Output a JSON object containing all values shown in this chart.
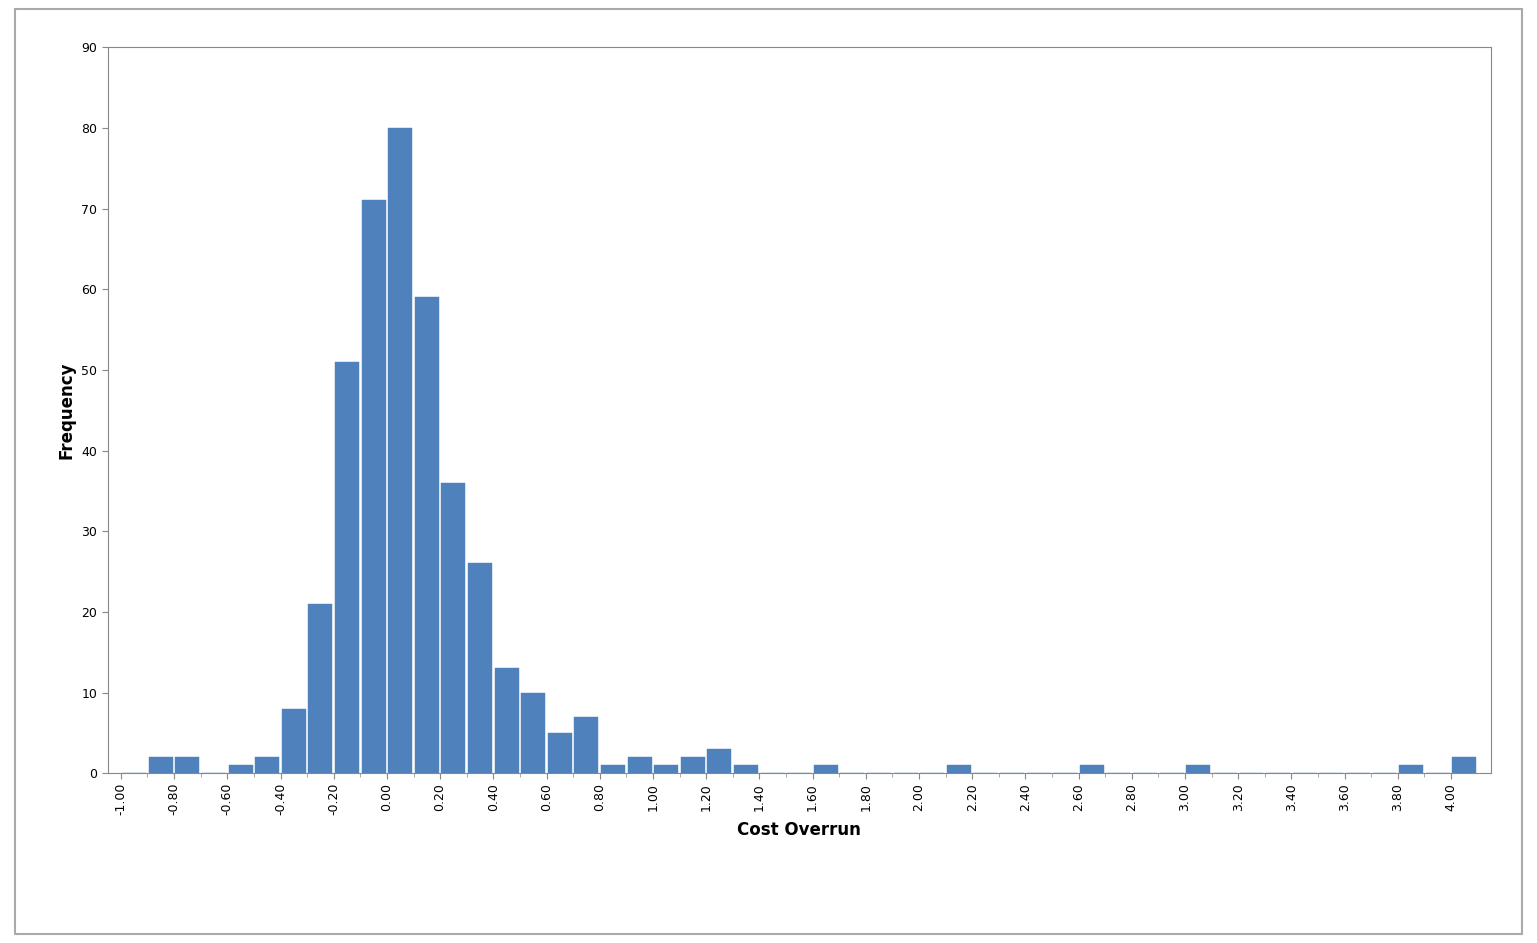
{
  "bar_lefts": [
    -1.0,
    -0.9,
    -0.8,
    -0.7,
    -0.6,
    -0.5,
    -0.4,
    -0.3,
    -0.2,
    -0.1,
    0.0,
    0.1,
    0.2,
    0.3,
    0.4,
    0.5,
    0.6,
    0.7,
    0.8,
    0.9,
    1.0,
    1.1,
    1.2,
    1.3,
    1.4,
    1.5,
    1.6,
    1.7,
    1.8,
    1.9,
    2.0,
    2.1,
    2.2,
    2.3,
    2.4,
    2.5,
    2.6,
    2.7,
    2.8,
    2.9,
    3.0,
    3.1,
    3.2,
    3.3,
    3.4,
    3.5,
    3.6,
    3.7,
    3.8,
    3.9,
    4.0
  ],
  "frequencies": [
    0,
    2,
    2,
    0,
    1,
    2,
    8,
    21,
    51,
    71,
    80,
    59,
    36,
    26,
    13,
    10,
    5,
    7,
    1,
    2,
    1,
    2,
    3,
    1,
    0,
    0,
    1,
    0,
    0,
    0,
    0,
    1,
    0,
    0,
    0,
    0,
    1,
    0,
    0,
    0,
    1,
    0,
    0,
    0,
    0,
    0,
    0,
    0,
    1,
    0,
    2
  ],
  "bar_width": 0.09,
  "bar_color": "#4F81BD",
  "bar_edgecolor": "#4F81BD",
  "xlabel": "Cost Overrun",
  "ylabel": "Frequency",
  "xlim": [
    -1.05,
    4.15
  ],
  "ylim": [
    0,
    90
  ],
  "xticks": [
    -1.0,
    -0.8,
    -0.6,
    -0.4,
    -0.2,
    0.0,
    0.2,
    0.4,
    0.6,
    0.8,
    1.0,
    1.2,
    1.4,
    1.6,
    1.8,
    2.0,
    2.2,
    2.4,
    2.6,
    2.8,
    3.0,
    3.2,
    3.4,
    3.6,
    3.8,
    4.0
  ],
  "yticks": [
    0,
    10,
    20,
    30,
    40,
    50,
    60,
    70,
    80,
    90
  ],
  "background_color": "#ffffff",
  "figure_facecolor": "#ffffff",
  "outer_border_color": "#aaaaaa",
  "xlabel_fontsize": 12,
  "ylabel_fontsize": 12,
  "tick_fontsize": 9,
  "spine_color": "#888888"
}
